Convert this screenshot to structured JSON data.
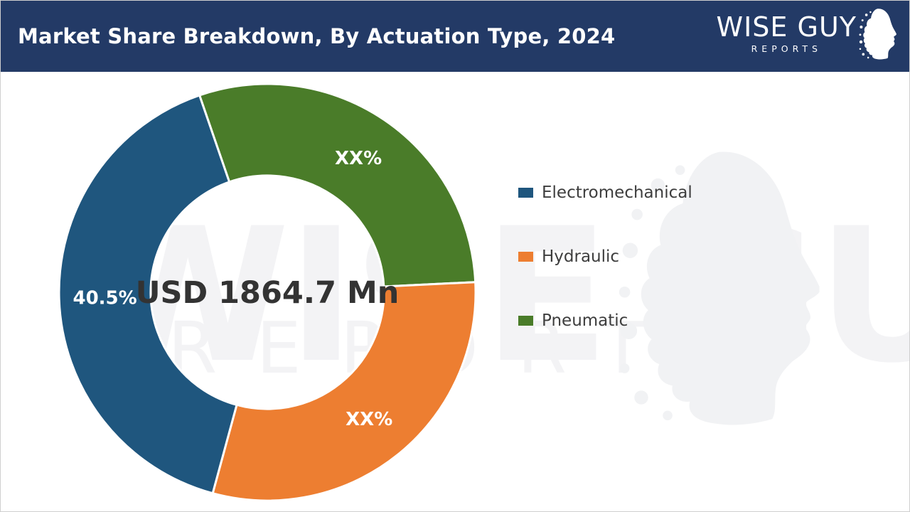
{
  "header": {
    "title": "Market Share Breakdown, By Actuation Type, 2024",
    "background_color": "#233a66",
    "logo": {
      "wordmark": "WISE GUY",
      "subtitle": "REPORTS"
    }
  },
  "watermark": {
    "line1": "WISE GUY",
    "line2": "REPORTS"
  },
  "chart_data": {
    "type": "pie",
    "subtype": "donut",
    "title": "Market Share Breakdown, By Actuation Type, 2024",
    "center_label": "USD 1864.7 Mn",
    "units": "percent share",
    "start_angle_deg": -19,
    "donut_hole_ratio": 0.56,
    "slices": [
      {
        "name": "Pneumatic",
        "value": 29.5,
        "label": "XX%",
        "color": "#4a7c29"
      },
      {
        "name": "Hydraulic",
        "value": 30.0,
        "label": "XX%",
        "color": "#ed7e31"
      },
      {
        "name": "Electromechanical",
        "value": 40.5,
        "label": "40.5%",
        "color": "#1f567e"
      }
    ],
    "legend_position": "right",
    "legend": [
      {
        "label": "Electromechanical",
        "color": "#1f567e"
      },
      {
        "label": "Hydraulic",
        "color": "#ed7e31"
      },
      {
        "label": "Pneumatic",
        "color": "#4a7c29"
      }
    ]
  }
}
